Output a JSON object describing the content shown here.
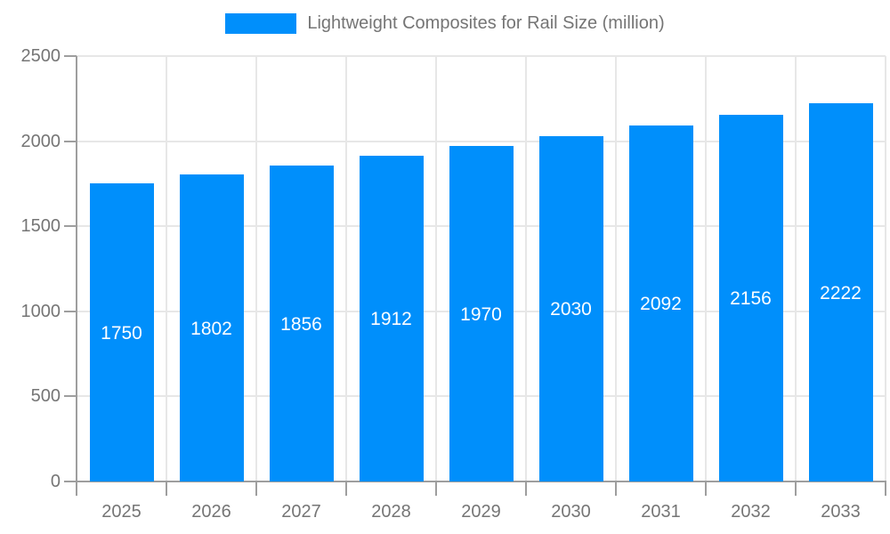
{
  "legend": {
    "label": "Lightweight Composites for Rail Size (million)",
    "swatch_color": "#008FFB"
  },
  "chart_data": {
    "type": "bar",
    "title": "Lightweight Composites for Rail Size (million)",
    "categories": [
      "2025",
      "2026",
      "2027",
      "2028",
      "2029",
      "2030",
      "2031",
      "2032",
      "2033"
    ],
    "values": [
      1750,
      1802,
      1856,
      1912,
      1970,
      2030,
      2092,
      2156,
      2222
    ],
    "series": [
      {
        "name": "Lightweight Composites for Rail Size (million)",
        "values": [
          1750,
          1802,
          1856,
          1912,
          1970,
          2030,
          2092,
          2156,
          2222
        ]
      }
    ],
    "xlabel": "",
    "ylabel": "",
    "ylim": [
      0,
      2500
    ],
    "yticks": [
      0,
      500,
      1000,
      1500,
      2000,
      2500
    ],
    "grid": true,
    "legend_position": "top",
    "bar_color": "#008FFB",
    "bar_label_color": "#FFFFFF",
    "axis_text_color": "#757575",
    "axis_line_color": "#9E9E9E",
    "gridline_color": "#E7E7E7"
  }
}
